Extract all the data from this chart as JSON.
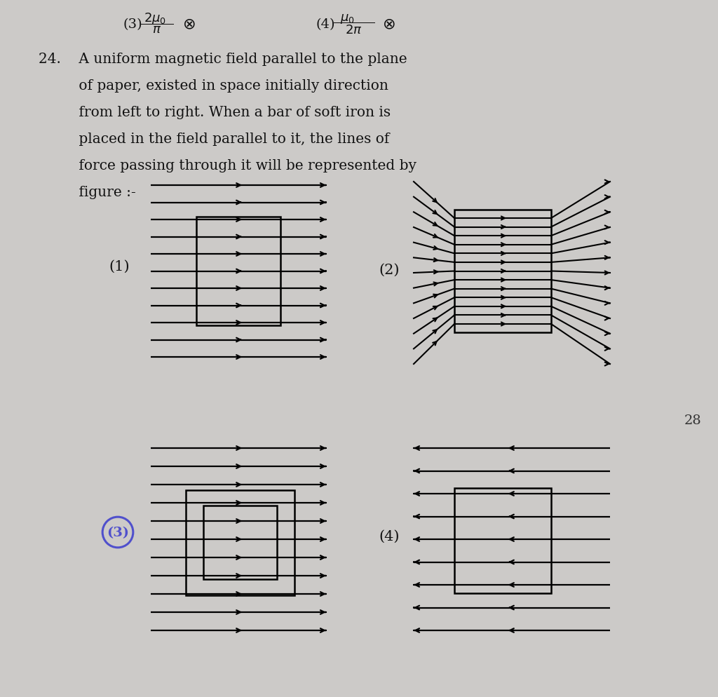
{
  "bg_color": "#cccac8",
  "text_color": "#111111",
  "label1": "(1)",
  "label2": "(2)",
  "label3": "(3)",
  "label4": "(4)",
  "page_number": "28",
  "fig_width": 10.24,
  "fig_height": 9.95,
  "dpi": 100
}
